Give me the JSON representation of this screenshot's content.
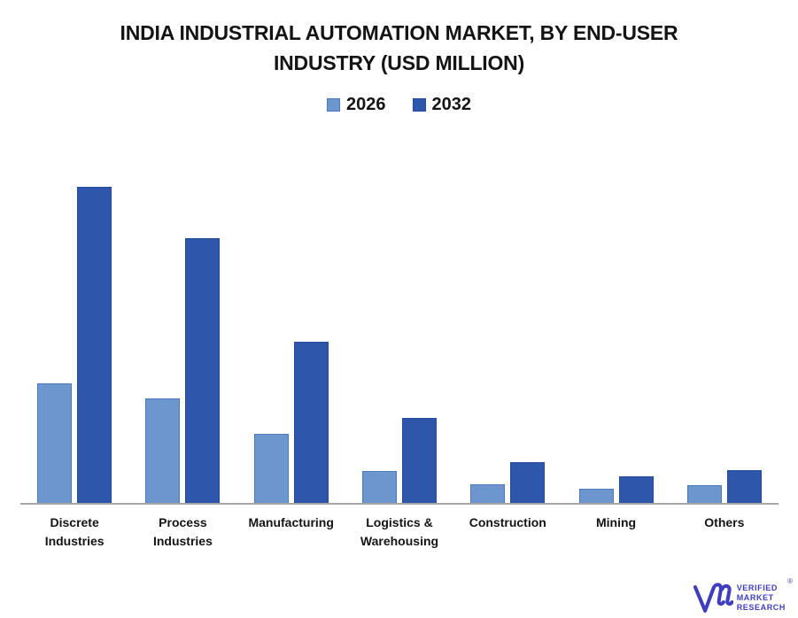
{
  "title": {
    "line1": "INDIA INDUSTRIAL AUTOMATION MARKET, BY END-USER",
    "line2": "INDUSTRY (USD MILLION)"
  },
  "chart_data": {
    "type": "bar",
    "title": "INDIA INDUSTRIAL AUTOMATION MARKET, BY END-USER INDUSTRY (USD MILLION)",
    "categories": [
      "Discrete Industries",
      "Process Industries",
      "Manufacturing",
      "Logistics & Warehousing",
      "Construction",
      "Mining",
      "Others"
    ],
    "series": [
      {
        "name": "2026",
        "color": "#6D96CE",
        "border_color": "#4A79BD",
        "values": [
          38,
          33,
          22,
          10,
          6,
          4.5,
          5.5
        ]
      },
      {
        "name": "2032",
        "color": "#2E57AC",
        "border_color": "#264C9E",
        "values": [
          100,
          84,
          51,
          27,
          13,
          8.5,
          10.5
        ]
      }
    ],
    "xlabel": "",
    "ylabel": "",
    "ylim": [
      0,
      115
    ],
    "grid": false,
    "y_axis_shown": false,
    "legend_position": "top",
    "axis_line_color": "#A6A6A6",
    "background_color": "#FFFFFF",
    "value_note": "Y-axis is unlabeled in the source image; values are relative estimates scaled so the tallest bar (Discrete Industries, 2032) = 100"
  },
  "logo": {
    "monogram": "VM",
    "lines": [
      "VERIFIED",
      "MARKET",
      "RESEARCH"
    ],
    "registered_mark": "®",
    "color": "#3F3DC0"
  }
}
